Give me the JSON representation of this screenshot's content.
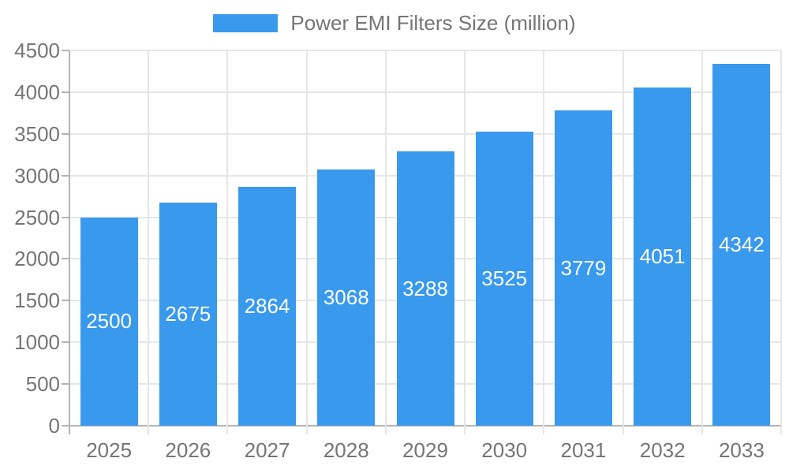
{
  "chart_data": {
    "type": "bar",
    "title": "Power EMI Filters Size (million)",
    "categories": [
      "2025",
      "2026",
      "2027",
      "2028",
      "2029",
      "2030",
      "2031",
      "2032",
      "2033"
    ],
    "series": [
      {
        "name": "Power EMI Filters Size (million)",
        "values": [
          2500,
          2675,
          2864,
          3068,
          3288,
          3525,
          3779,
          4051,
          4342
        ]
      }
    ],
    "value_labels": [
      2500,
      2675,
      2864,
      3068,
      3288,
      3525,
      3779,
      4051,
      4342
    ],
    "xlabel": "",
    "ylabel": "",
    "ylim": [
      0,
      4500
    ],
    "yticks": [
      0,
      500,
      1000,
      1500,
      2000,
      2500,
      3000,
      3500,
      4000,
      4500
    ],
    "grid": true,
    "legend_position": "top-center",
    "colors": {
      "bar": "#3999ec",
      "bar_value_text": "#ffffff",
      "axis_text": "#757575",
      "grid_line": "#e6e6e6",
      "axis_line": "#b3b3b3",
      "background": "#ffffff"
    }
  }
}
